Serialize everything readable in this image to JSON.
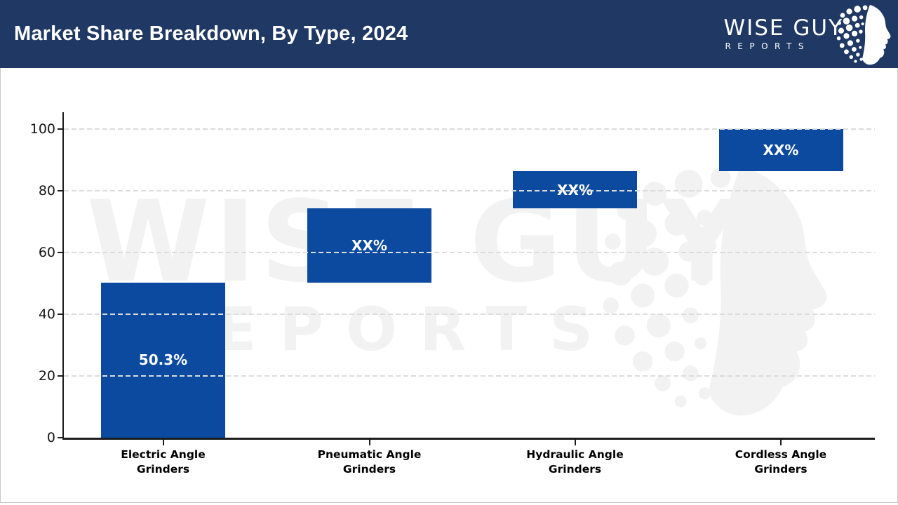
{
  "header": {
    "title": "Market Share Breakdown, By Type, 2024",
    "brand": {
      "name_top": "WISE GUY",
      "name_bottom": "REPORTS"
    }
  },
  "watermark": {
    "line1": "WISE GUY",
    "line2": "REPORTS"
  },
  "chart_data": {
    "type": "bar",
    "subtype": "waterfall-stacked-percentage",
    "title": "Market Share Breakdown, By Type, 2024",
    "categories": [
      "Electric Angle Grinders",
      "Pneumatic Angle Grinders",
      "Hydraulic Angle Grinders",
      "Cordless Angle Grinders"
    ],
    "category_label_lines": [
      [
        "Electric Angle",
        "Grinders"
      ],
      [
        "Pneumatic Angle",
        "Grinders"
      ],
      [
        "Hydraulic Angle",
        "Grinders"
      ],
      [
        "Cordless Angle",
        "Grinders"
      ]
    ],
    "segments": [
      {
        "category": "Electric Angle Grinders",
        "start": 0,
        "end": 50.3,
        "label": "50.3%"
      },
      {
        "category": "Pneumatic Angle Grinders",
        "start": 50.3,
        "end": 74.3,
        "label": "XX%"
      },
      {
        "category": "Hydraulic Angle Grinders",
        "start": 74.3,
        "end": 86.3,
        "label": "XX%"
      },
      {
        "category": "Cordless Angle Grinders",
        "start": 86.3,
        "end": 100,
        "label": "XX%"
      }
    ],
    "yticks": [
      0,
      20,
      40,
      60,
      80,
      100
    ],
    "ylim": [
      0,
      106
    ],
    "grid": "horizontal-dashed",
    "legend": "none",
    "bar_color": "#0b4a9e",
    "bar_label_color": "#ffffff",
    "axis_color": "#1c1c1c",
    "grid_color": "#dcdcdc"
  },
  "colors": {
    "header_bg": "#1f3864",
    "watermark": "#f2f2f2",
    "background": "#ffffff"
  }
}
